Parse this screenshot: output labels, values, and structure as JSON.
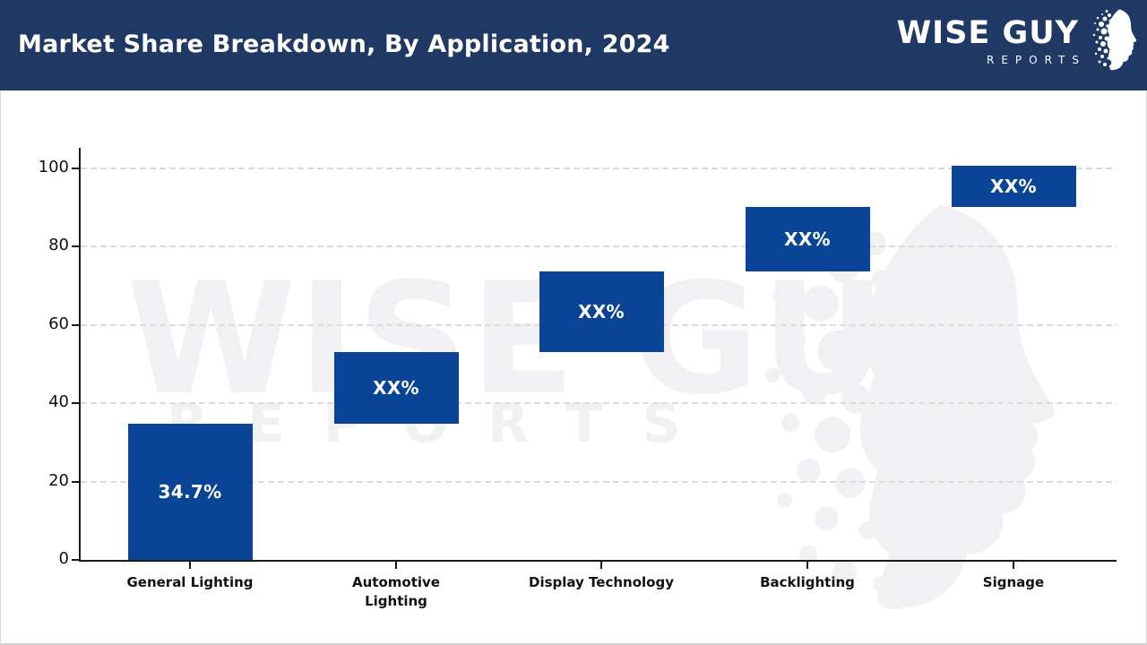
{
  "header": {
    "title": "Market Share Breakdown, By Application, 2024",
    "brand_line1": "WISE GUY",
    "brand_line2": "REPORTS",
    "bg_color": "#1f3864"
  },
  "watermark": {
    "line1": "WISE GUY",
    "line2": "REPORTS"
  },
  "chart_data": {
    "type": "bar",
    "subtype": "waterfall",
    "title": "Market Share Breakdown, By Application, 2024",
    "categories": [
      "General Lighting",
      "Automotive\nLighting",
      "Display Technology",
      "Backlighting",
      "Signage"
    ],
    "series": [
      {
        "name": "Market Share",
        "segments": [
          {
            "category": "General Lighting",
            "start": 0,
            "end": 34.7,
            "label": "34.7%"
          },
          {
            "category": "Automotive Lighting",
            "start": 34.7,
            "end": 53.1,
            "label": "XX%"
          },
          {
            "category": "Display Technology",
            "start": 53.1,
            "end": 73.6,
            "label": "XX%"
          },
          {
            "category": "Backlighting",
            "start": 73.6,
            "end": 90.0,
            "label": "XX%"
          },
          {
            "category": "Signage",
            "start": 90.0,
            "end": 100.5,
            "label": "XX%"
          }
        ]
      }
    ],
    "yticks": [
      0,
      20,
      40,
      60,
      80,
      100
    ],
    "ylim": [
      0,
      105
    ],
    "xlabel": "",
    "ylabel": "",
    "grid": "horizontal-dashed",
    "legend": "none",
    "bar_color": "#0a4496",
    "bar_label_color": "#ffffff"
  }
}
